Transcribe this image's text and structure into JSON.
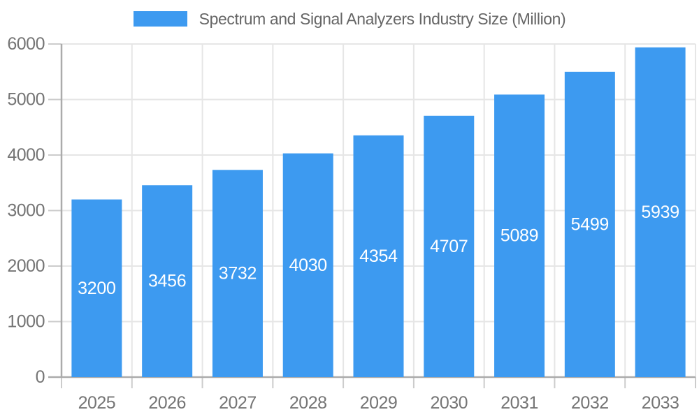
{
  "chart_data": {
    "type": "bar",
    "title": "Spectrum and Signal Analyzers Industry Size (Million)",
    "categories": [
      "2025",
      "2026",
      "2027",
      "2028",
      "2029",
      "2030",
      "2031",
      "2032",
      "2033"
    ],
    "values": [
      3200,
      3456,
      3732,
      4030,
      4354,
      4707,
      5089,
      5499,
      5939
    ],
    "series": [
      {
        "name": "Spectrum and Signal Analyzers Industry Size (Million)",
        "values": [
          3200,
          3456,
          3732,
          4030,
          4354,
          4707,
          5089,
          5499,
          5939
        ]
      }
    ],
    "xlabel": "",
    "ylabel": "",
    "ylim": [
      0,
      6000
    ],
    "yticks": [
      0,
      1000,
      2000,
      3000,
      4000,
      5000,
      6000
    ],
    "grid": true,
    "legend_position": "top",
    "value_labels": "inside-center",
    "colors": {
      "bar": "#3d9af0",
      "grid": "#e6e6e6",
      "axis_line": "#ababab",
      "tick": "#cccccc",
      "axis_text": "#757575",
      "title_text": "#666666",
      "value_label_text": "#ffffff",
      "background": "#ffffff"
    }
  }
}
